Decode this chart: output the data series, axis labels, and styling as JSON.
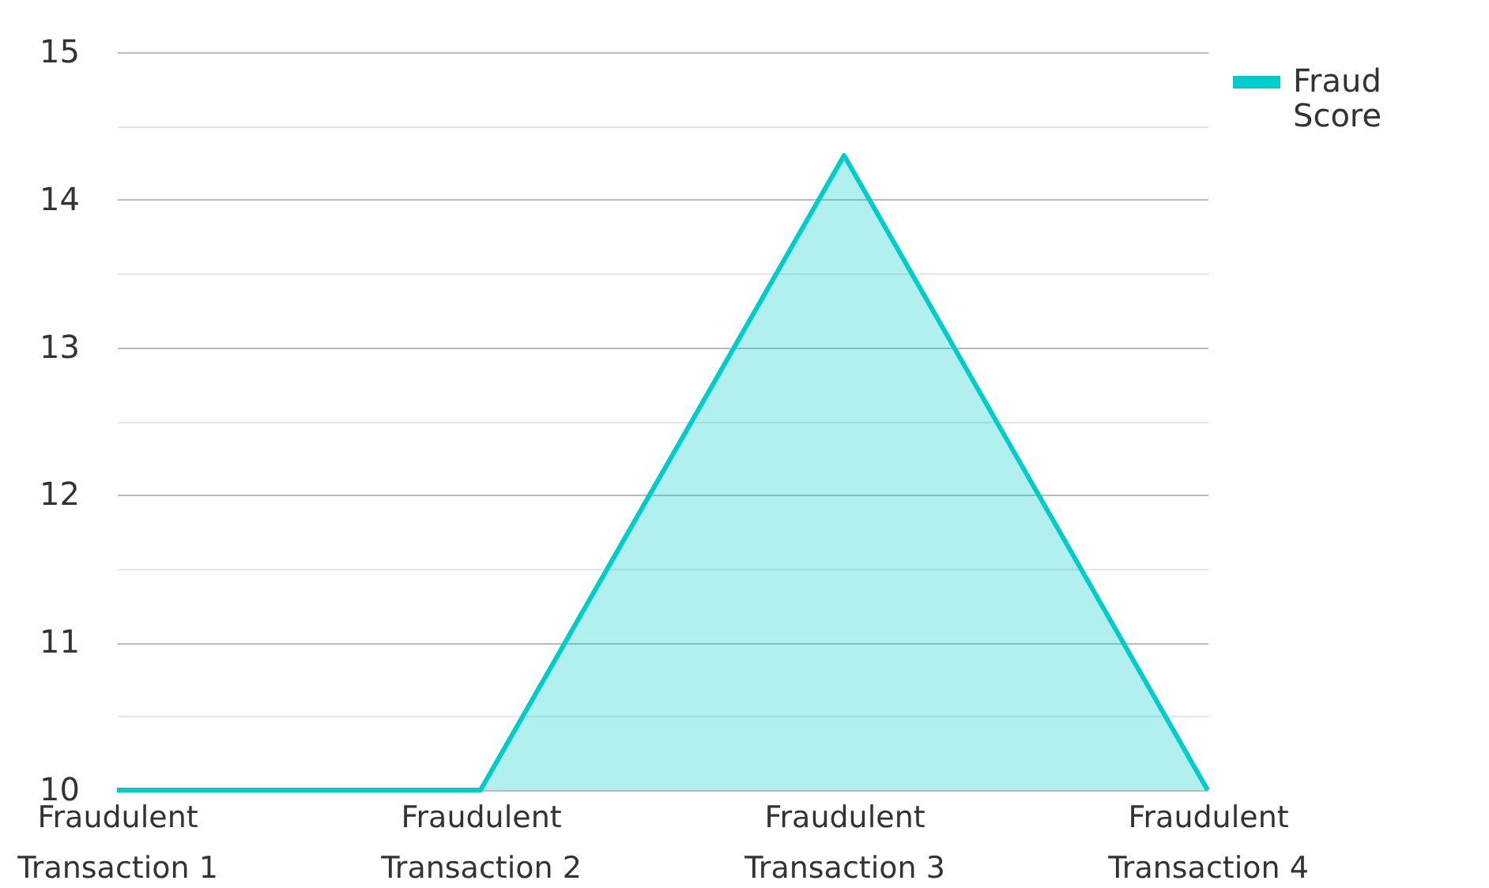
{
  "chart_data": {
    "type": "area",
    "categories": [
      "Fraudulent Transaction 1",
      "Fraudulent Transaction 2",
      "Fraudulent Transaction 3",
      "Fraudulent Transaction 4"
    ],
    "series": [
      {
        "name": "Fraud Score",
        "color": "#00cccc",
        "values": [
          10,
          10,
          14.3,
          10
        ]
      }
    ],
    "ylim": [
      10,
      15
    ],
    "yticks": [
      10,
      {
        "value": 10.5,
        "label": null
      },
      11,
      {
        "value": 11.5,
        "label": null
      },
      12,
      {
        "value": 12.5,
        "label": null
      },
      13,
      {
        "value": 13.5,
        "label": null
      },
      14,
      {
        "value": 14.5,
        "label": null
      },
      15
    ],
    "grid": "y",
    "legend": "top right"
  }
}
